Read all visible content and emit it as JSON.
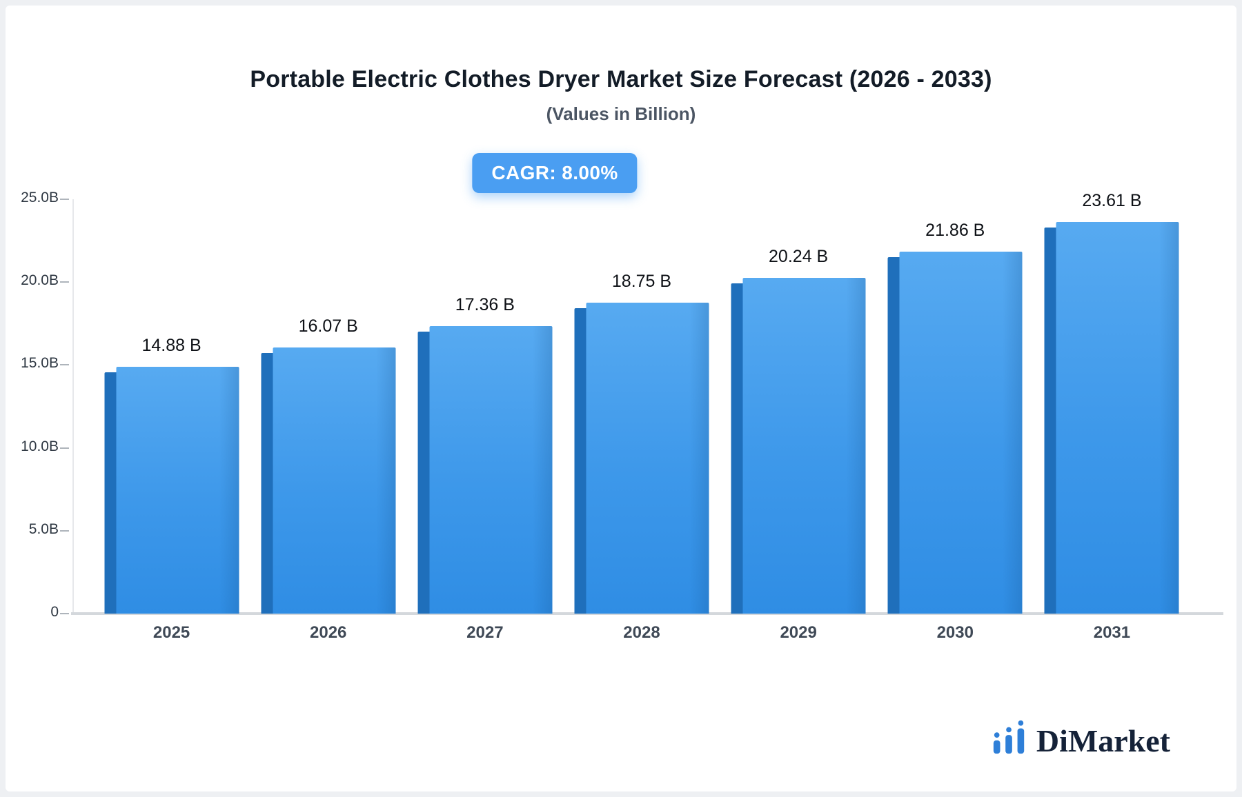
{
  "header": {
    "title": "Portable Electric Clothes Dryer Market Size Forecast (2026 - 2033)",
    "subtitle": "(Values in Billion)"
  },
  "badge": {
    "label": "CAGR: 8.00%"
  },
  "brand": {
    "name": "DiMarket"
  },
  "chart_data": {
    "type": "bar",
    "title": "Portable Electric Clothes Dryer Market Size Forecast (2026 - 2033)",
    "subtitle": "(Values in Billion)",
    "categories": [
      "2025",
      "2026",
      "2027",
      "2028",
      "2029",
      "2030",
      "2031"
    ],
    "values": [
      14.88,
      16.07,
      17.36,
      18.75,
      20.24,
      21.86,
      23.61
    ],
    "value_labels": [
      "14.88 B",
      "16.07 B",
      "17.36 B",
      "18.75 B",
      "20.24 B",
      "21.86 B",
      "23.61 B"
    ],
    "annotations": [
      "CAGR: 8.00%"
    ],
    "xlabel": "",
    "ylabel": "",
    "ylim": [
      0,
      25
    ],
    "yticks": [
      {
        "label": "25.0B",
        "value": 25
      },
      {
        "label": "20.0B",
        "value": 20
      },
      {
        "label": "15.0B",
        "value": 15
      },
      {
        "label": "10.0B",
        "value": 10
      },
      {
        "label": "5.0B",
        "value": 5
      },
      {
        "label": "0",
        "value": 0
      }
    ],
    "grid": false,
    "legend": false,
    "bar_color_top": "#57aaf1",
    "bar_color_bottom": "#2f8de4",
    "bar_side_color": "#1f6fbb",
    "badge_color": "#4a9ef2"
  }
}
